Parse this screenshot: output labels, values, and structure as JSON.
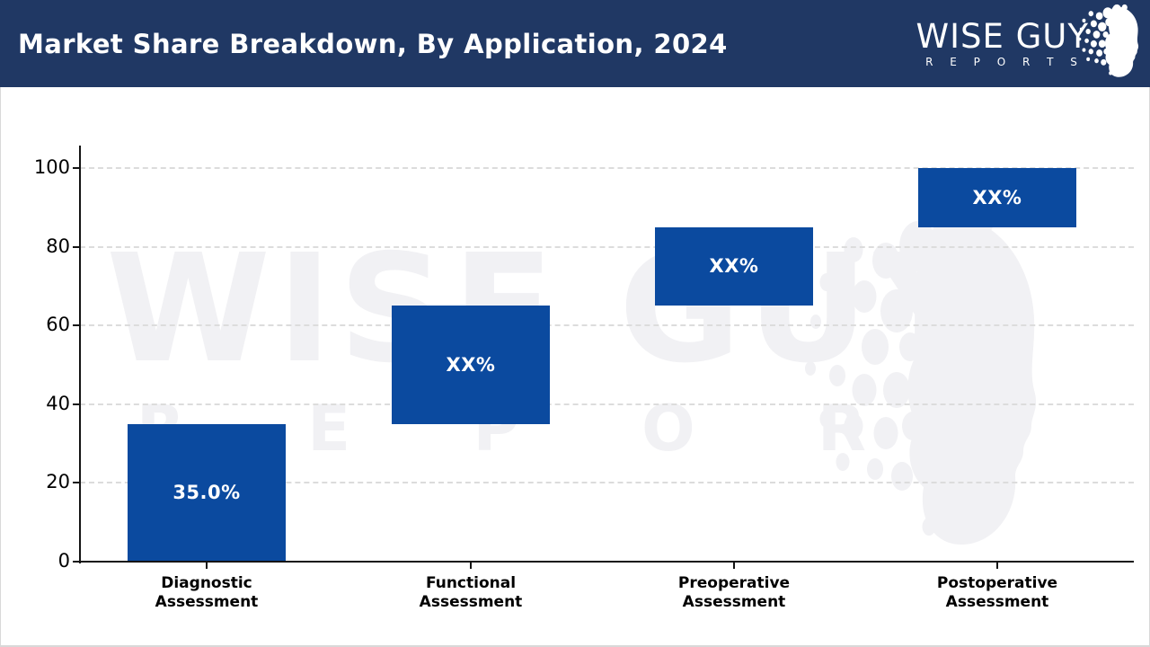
{
  "header": {
    "title": "Market Share Breakdown, By Application, 2024",
    "logo": {
      "line1": "WISE GUY",
      "line2": "R E P O R T S"
    }
  },
  "watermark": {
    "line1": "WISE GUY",
    "line2": "R E P O R T S"
  },
  "chart_data": {
    "type": "bar",
    "subtype": "waterfall",
    "title": "Market Share Breakdown, By Application, 2024",
    "categories": [
      "Diagnostic Assessment",
      "Functional Assessment",
      "Preoperative Assessment",
      "Postoperative Assessment"
    ],
    "bars": [
      {
        "category": "Diagnostic Assessment",
        "start": 0,
        "end": 35,
        "label": "35.0%"
      },
      {
        "category": "Functional Assessment",
        "start": 35,
        "end": 65,
        "label": "XX%"
      },
      {
        "category": "Preoperative Assessment",
        "start": 65,
        "end": 85,
        "label": "XX%"
      },
      {
        "category": "Postoperative Assessment",
        "start": 85,
        "end": 100,
        "label": "XX%"
      }
    ],
    "y_ticks": [
      0,
      20,
      40,
      60,
      80,
      100
    ],
    "ylim": [
      0,
      105
    ],
    "xlabel": "",
    "ylabel": "",
    "grid": true,
    "legend": false,
    "bar_color": "#0b4a9f",
    "bar_label_color": "#ffffff"
  },
  "colors": {
    "header_bg": "#203864",
    "bar": "#0b4a9f",
    "watermark": "#f1f1f4",
    "grid": "#dcdcdc",
    "axis": "#141414"
  }
}
